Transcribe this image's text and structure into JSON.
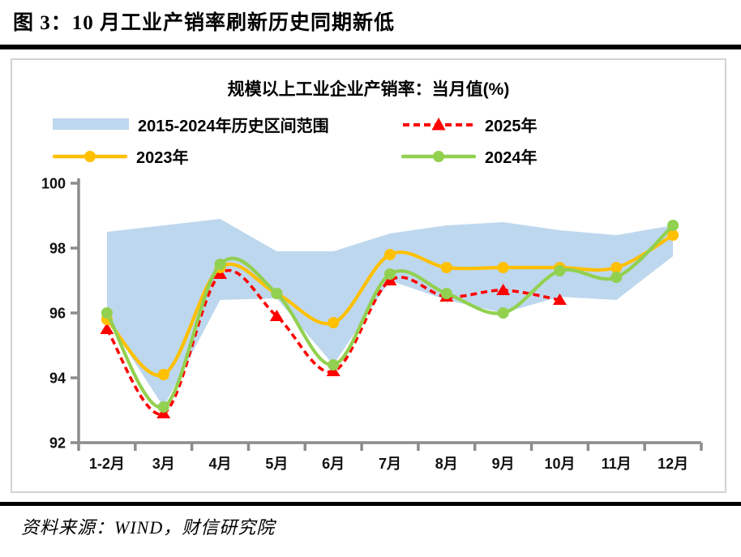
{
  "page": {
    "figure_title": "图 3：10 月工业产销率刷新历史同期新低",
    "source_note": "资料来源：WIND，财信研究院"
  },
  "chart_data": {
    "type": "line",
    "title": "规模以上工业企业产销率：当月值(%)",
    "categories": [
      "1-2月",
      "3月",
      "4月",
      "5月",
      "6月",
      "7月",
      "8月",
      "9月",
      "10月",
      "11月",
      "12月"
    ],
    "ylim": [
      92,
      100
    ],
    "yticks": [
      92,
      94,
      96,
      98,
      100
    ],
    "grid": false,
    "legend_position": "top",
    "axis_color": "#8C8C8C",
    "series": [
      {
        "name": "2015-2024年历史区间范围",
        "type": "band",
        "color": "#BDD7EE",
        "upper": [
          98.5,
          98.7,
          98.9,
          97.9,
          97.9,
          98.45,
          98.7,
          98.8,
          98.55,
          98.4,
          98.7
        ],
        "lower": [
          95.8,
          93.1,
          96.4,
          96.45,
          94.4,
          97.0,
          96.4,
          96.0,
          96.5,
          96.4,
          97.75
        ]
      },
      {
        "name": "2025年",
        "type": "line",
        "color": "#FF0000",
        "line_style": "dashed",
        "marker": "triangle",
        "values": [
          95.5,
          92.9,
          97.2,
          95.9,
          94.2,
          97.0,
          96.5,
          96.7,
          96.4
        ]
      },
      {
        "name": "2023年",
        "type": "line",
        "color": "#FFC000",
        "line_style": "solid",
        "marker": "circle",
        "values": [
          95.8,
          94.1,
          97.4,
          96.6,
          95.7,
          97.8,
          97.4,
          97.4,
          97.4,
          97.4,
          98.4
        ]
      },
      {
        "name": "2024年",
        "type": "line",
        "color": "#92D050",
        "line_style": "solid",
        "marker": "circle",
        "values": [
          96.0,
          93.1,
          97.5,
          96.6,
          94.4,
          97.2,
          96.6,
          96.0,
          97.3,
          97.1,
          98.7
        ]
      }
    ]
  }
}
